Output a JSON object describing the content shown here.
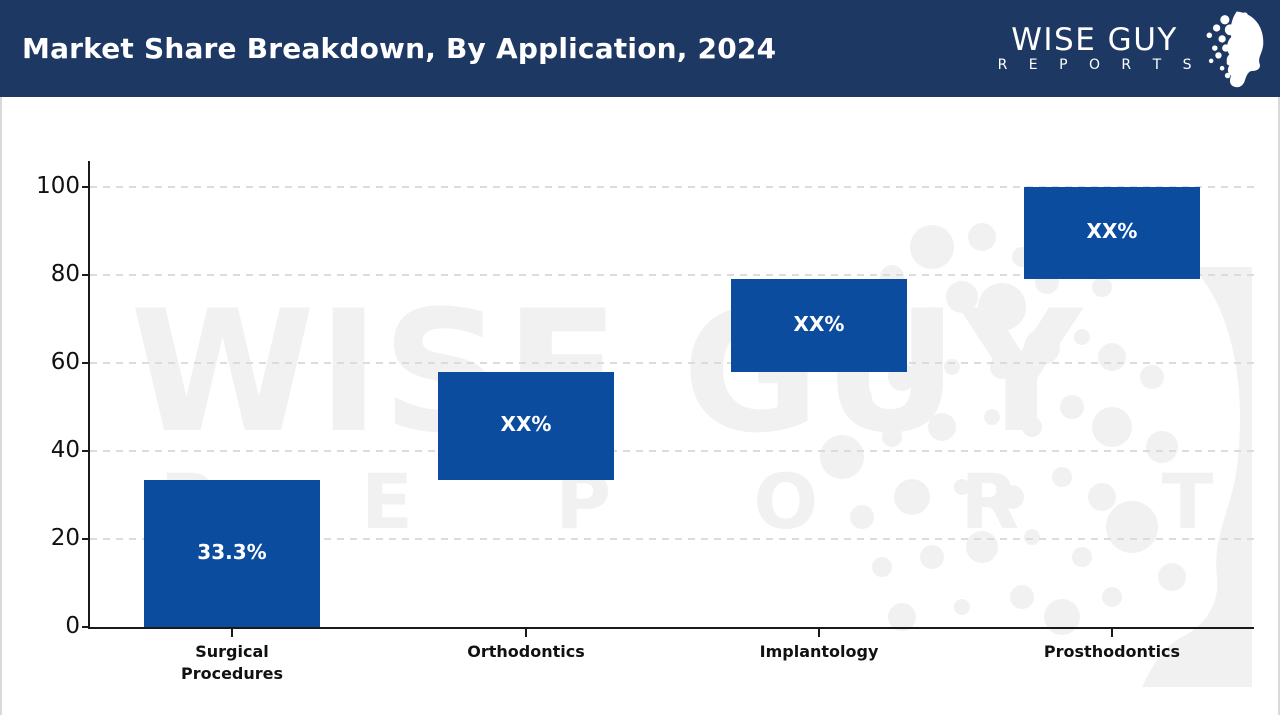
{
  "header": {
    "title": "Market Share Breakdown, By Application, 2024",
    "logo": {
      "line1": "WISE GUY",
      "line2": "R E P O R T S"
    }
  },
  "watermark": {
    "line1": "WISE GUY",
    "line2": "R E P O R T S"
  },
  "colors": {
    "header_bg": "#1e3864",
    "bar": "#0b4c9f",
    "bar_label": "#ffffff",
    "grid": "#dcdcdc",
    "axis": "#1a1a1a",
    "watermark": "#f1f1f1"
  },
  "chart_data": {
    "type": "bar",
    "subtype": "waterfall",
    "title": "Market Share Breakdown, By Application, 2024",
    "categories": [
      "Surgical Procedures",
      "Orthodontics",
      "Implantology",
      "Prosthodontics"
    ],
    "series": [
      {
        "name": "Market Share",
        "segments": [
          {
            "category": "Surgical Procedures",
            "start": 0,
            "end": 33.3,
            "label": "33.3%"
          },
          {
            "category": "Orthodontics",
            "start": 33.3,
            "end": 58,
            "label": "XX%"
          },
          {
            "category": "Implantology",
            "start": 58,
            "end": 79,
            "label": "XX%"
          },
          {
            "category": "Prosthodontics",
            "start": 79,
            "end": 100,
            "label": "XX%"
          }
        ]
      }
    ],
    "xlabel": "",
    "ylabel": "",
    "ylim": [
      0,
      100
    ],
    "yticks": [
      0,
      20,
      40,
      60,
      80,
      100
    ],
    "grid": "horizontal-dashed",
    "legend": "none"
  }
}
